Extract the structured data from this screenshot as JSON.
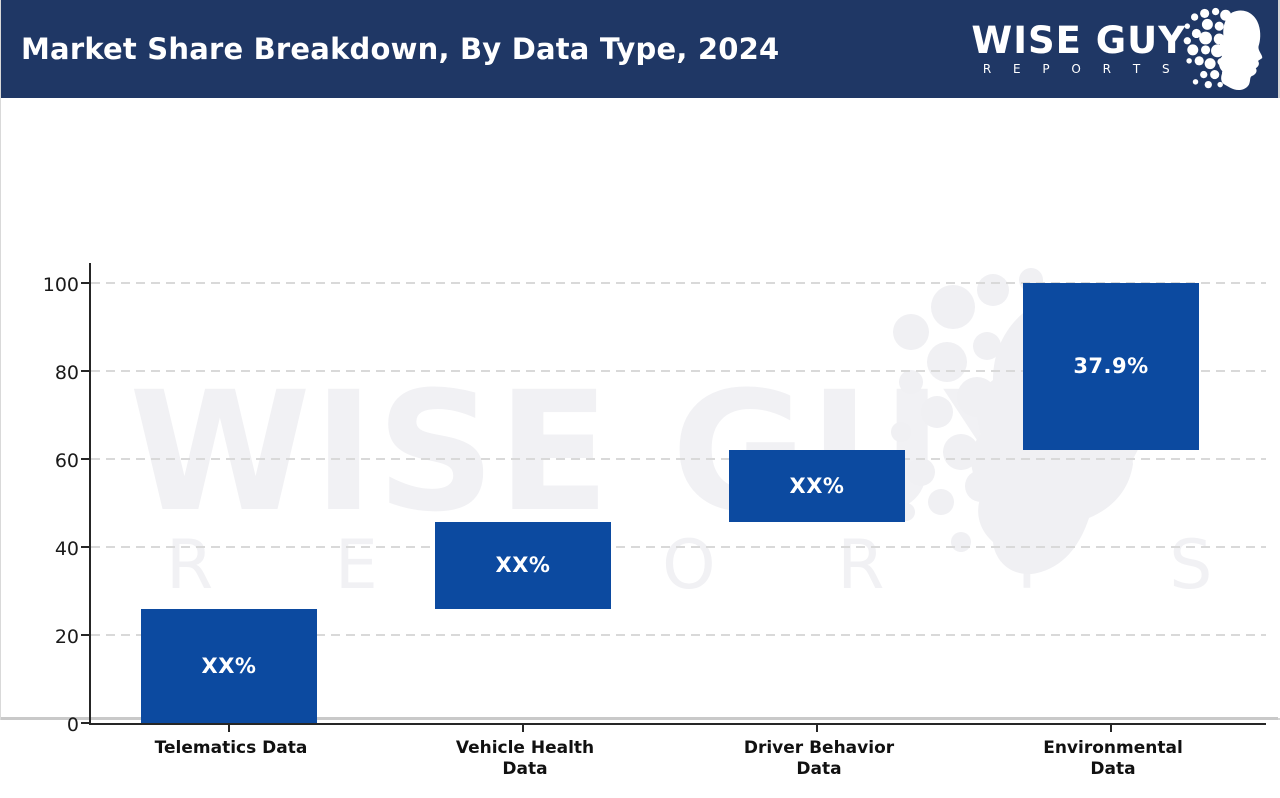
{
  "header": {
    "title": "Market Share Breakdown, By Data Type, 2024",
    "brand": {
      "line1": "WISE GUY",
      "line2": "R E P O R T S"
    }
  },
  "watermark": {
    "line1": "WISE GUY",
    "line2": "R E P O R T S"
  },
  "chart_data": {
    "type": "bar",
    "subtype": "waterfall",
    "title": "Market Share Breakdown, By Data Type, 2024",
    "categories": [
      "Telematics Data",
      "Vehicle Health\nData",
      "Driver Behavior\nData",
      "Environmental Data"
    ],
    "series": [
      {
        "name": "Market Share",
        "segments": [
          {
            "category": "Telematics Data",
            "start": 0,
            "end": 26,
            "value": 26,
            "label": "XX%"
          },
          {
            "category": "Vehicle Health Data",
            "start": 26,
            "end": 45.7,
            "value": 19.7,
            "label": "XX%"
          },
          {
            "category": "Driver Behavior Data",
            "start": 45.7,
            "end": 62.1,
            "value": 16.4,
            "label": "XX%"
          },
          {
            "category": "Environmental Data",
            "start": 62.1,
            "end": 100,
            "value": 37.9,
            "label": "37.9%"
          }
        ]
      }
    ],
    "xlabel": "",
    "ylabel": "",
    "ylim": [
      0,
      105
    ],
    "yticks": [
      0,
      20,
      40,
      60,
      80,
      100
    ],
    "grid": "horizontal-dashed",
    "legend": "none",
    "colors": {
      "bar": "#0c4aa0",
      "bar_label": "#ffffff",
      "header_bg": "#1f3765",
      "axis": "#262626",
      "gridline": "#d9d9d9",
      "watermark": "#f1f1f4"
    }
  }
}
